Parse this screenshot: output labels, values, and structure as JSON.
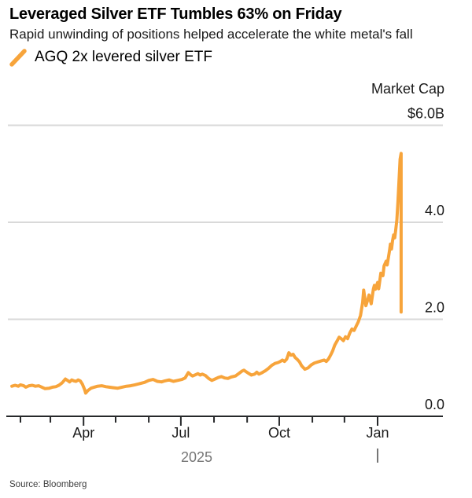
{
  "header": {
    "title": "Leveraged Silver ETF Tumbles 63% on Friday",
    "subtitle": "Rapid unwinding of positions helped accelerate the white metal's fall"
  },
  "legend": {
    "series_label": "AGQ 2x levered silver ETF"
  },
  "source": {
    "label": "Source: Bloomberg"
  },
  "colors": {
    "line": "#F7A43B",
    "grid": "#D9D9D9",
    "axis": "#26282A",
    "text": "#1A1A1A",
    "muted": "#767676"
  },
  "chart_data": {
    "type": "line",
    "title": "Leveraged Silver ETF Tumbles 63% on Friday",
    "subtitle": "Rapid unwinding of positions helped accelerate the white metal's fall",
    "unit": "$B market cap",
    "grid": "horizontal-only",
    "legend_position": "top-left",
    "y_axis": {
      "title": "Market Cap",
      "range": [
        0.0,
        6.0
      ],
      "ticks": [
        {
          "value": 6.0,
          "label": "$6.0B"
        },
        {
          "value": 4.0,
          "label": "4.0"
        },
        {
          "value": 2.0,
          "label": "2.0"
        },
        {
          "value": 0.0,
          "label": "0.0"
        }
      ]
    },
    "x_axis": {
      "range": [
        "2025-01-18",
        "2026-02-14"
      ],
      "year_label": "2025",
      "year_divider_date": "2026-01-01",
      "ticks": [
        {
          "date": "2025-02-01",
          "label": "",
          "major": false
        },
        {
          "date": "2025-03-01",
          "label": "",
          "major": false
        },
        {
          "date": "2025-04-01",
          "label": "Apr",
          "major": true
        },
        {
          "date": "2025-05-01",
          "label": "",
          "major": false
        },
        {
          "date": "2025-06-01",
          "label": "",
          "major": false
        },
        {
          "date": "2025-07-01",
          "label": "Jul",
          "major": true
        },
        {
          "date": "2025-08-01",
          "label": "",
          "major": false
        },
        {
          "date": "2025-09-01",
          "label": "",
          "major": false
        },
        {
          "date": "2025-10-01",
          "label": "Oct",
          "major": true
        },
        {
          "date": "2025-11-01",
          "label": "",
          "major": false
        },
        {
          "date": "2025-12-01",
          "label": "",
          "major": false
        },
        {
          "date": "2026-01-01",
          "label": "Jan",
          "major": true
        }
      ]
    },
    "series": [
      {
        "name": "AGQ 2x levered silver ETF",
        "color": "#F7A43B",
        "points": [
          [
            "2025-01-24",
            0.62
          ],
          [
            "2025-01-27",
            0.64
          ],
          [
            "2025-01-30",
            0.62
          ],
          [
            "2025-02-01",
            0.65
          ],
          [
            "2025-02-04",
            0.63
          ],
          [
            "2025-02-06",
            0.6
          ],
          [
            "2025-02-09",
            0.63
          ],
          [
            "2025-02-12",
            0.64
          ],
          [
            "2025-02-15",
            0.62
          ],
          [
            "2025-02-18",
            0.63
          ],
          [
            "2025-02-21",
            0.6
          ],
          [
            "2025-02-24",
            0.57
          ],
          [
            "2025-02-28",
            0.58
          ],
          [
            "2025-03-03",
            0.6
          ],
          [
            "2025-03-06",
            0.61
          ],
          [
            "2025-03-09",
            0.64
          ],
          [
            "2025-03-12",
            0.69
          ],
          [
            "2025-03-15",
            0.77
          ],
          [
            "2025-03-17",
            0.74
          ],
          [
            "2025-03-19",
            0.71
          ],
          [
            "2025-03-21",
            0.75
          ],
          [
            "2025-03-23",
            0.73
          ],
          [
            "2025-03-25",
            0.72
          ],
          [
            "2025-03-27",
            0.75
          ],
          [
            "2025-03-29",
            0.73
          ],
          [
            "2025-03-31",
            0.66
          ],
          [
            "2025-04-02",
            0.55
          ],
          [
            "2025-04-03",
            0.48
          ],
          [
            "2025-04-05",
            0.53
          ],
          [
            "2025-04-08",
            0.58
          ],
          [
            "2025-04-11",
            0.6
          ],
          [
            "2025-04-14",
            0.62
          ],
          [
            "2025-04-18",
            0.63
          ],
          [
            "2025-04-22",
            0.61
          ],
          [
            "2025-04-25",
            0.6
          ],
          [
            "2025-04-29",
            0.59
          ],
          [
            "2025-05-03",
            0.58
          ],
          [
            "2025-05-07",
            0.6
          ],
          [
            "2025-05-11",
            0.62
          ],
          [
            "2025-05-15",
            0.63
          ],
          [
            "2025-05-19",
            0.65
          ],
          [
            "2025-05-23",
            0.67
          ],
          [
            "2025-05-28",
            0.7
          ],
          [
            "2025-06-01",
            0.74
          ],
          [
            "2025-06-05",
            0.76
          ],
          [
            "2025-06-09",
            0.72
          ],
          [
            "2025-06-13",
            0.71
          ],
          [
            "2025-06-16",
            0.73
          ],
          [
            "2025-06-20",
            0.75
          ],
          [
            "2025-06-24",
            0.72
          ],
          [
            "2025-06-28",
            0.74
          ],
          [
            "2025-07-02",
            0.76
          ],
          [
            "2025-07-05",
            0.79
          ],
          [
            "2025-07-08",
            0.9
          ],
          [
            "2025-07-10",
            0.86
          ],
          [
            "2025-07-12",
            0.83
          ],
          [
            "2025-07-15",
            0.86
          ],
          [
            "2025-07-17",
            0.88
          ],
          [
            "2025-07-19",
            0.85
          ],
          [
            "2025-07-21",
            0.87
          ],
          [
            "2025-07-24",
            0.84
          ],
          [
            "2025-07-27",
            0.78
          ],
          [
            "2025-07-30",
            0.74
          ],
          [
            "2025-08-02",
            0.77
          ],
          [
            "2025-08-05",
            0.8
          ],
          [
            "2025-08-08",
            0.82
          ],
          [
            "2025-08-11",
            0.79
          ],
          [
            "2025-08-14",
            0.78
          ],
          [
            "2025-08-17",
            0.81
          ],
          [
            "2025-08-21",
            0.83
          ],
          [
            "2025-08-24",
            0.88
          ],
          [
            "2025-08-27",
            0.93
          ],
          [
            "2025-08-29",
            0.95
          ],
          [
            "2025-08-31",
            0.92
          ],
          [
            "2025-09-02",
            0.89
          ],
          [
            "2025-09-05",
            0.85
          ],
          [
            "2025-09-08",
            0.87
          ],
          [
            "2025-09-10",
            0.91
          ],
          [
            "2025-09-12",
            0.87
          ],
          [
            "2025-09-15",
            0.9
          ],
          [
            "2025-09-18",
            0.94
          ],
          [
            "2025-09-21",
            0.99
          ],
          [
            "2025-09-24",
            1.05
          ],
          [
            "2025-09-27",
            1.09
          ],
          [
            "2025-09-30",
            1.11
          ],
          [
            "2025-10-02",
            1.13
          ],
          [
            "2025-10-04",
            1.16
          ],
          [
            "2025-10-06",
            1.13
          ],
          [
            "2025-10-08",
            1.18
          ],
          [
            "2025-10-10",
            1.31
          ],
          [
            "2025-10-12",
            1.26
          ],
          [
            "2025-10-14",
            1.28
          ],
          [
            "2025-10-16",
            1.21
          ],
          [
            "2025-10-18",
            1.17
          ],
          [
            "2025-10-20",
            1.12
          ],
          [
            "2025-10-22",
            1.04
          ],
          [
            "2025-10-25",
            0.97
          ],
          [
            "2025-10-28",
            1.0
          ],
          [
            "2025-10-31",
            1.06
          ],
          [
            "2025-11-03",
            1.1
          ],
          [
            "2025-11-06",
            1.12
          ],
          [
            "2025-11-09",
            1.14
          ],
          [
            "2025-11-12",
            1.16
          ],
          [
            "2025-11-14",
            1.13
          ],
          [
            "2025-11-16",
            1.18
          ],
          [
            "2025-11-18",
            1.26
          ],
          [
            "2025-11-20",
            1.35
          ],
          [
            "2025-11-22",
            1.47
          ],
          [
            "2025-11-24",
            1.55
          ],
          [
            "2025-11-26",
            1.63
          ],
          [
            "2025-11-28",
            1.6
          ],
          [
            "2025-11-30",
            1.56
          ],
          [
            "2025-12-02",
            1.64
          ],
          [
            "2025-12-04",
            1.6
          ],
          [
            "2025-12-06",
            1.72
          ],
          [
            "2025-12-08",
            1.8
          ],
          [
            "2025-12-10",
            1.77
          ],
          [
            "2025-12-12",
            1.86
          ],
          [
            "2025-12-14",
            1.95
          ],
          [
            "2025-12-16",
            2.08
          ],
          [
            "2025-12-18",
            2.35
          ],
          [
            "2025-12-19",
            2.6
          ],
          [
            "2025-12-21",
            2.28
          ],
          [
            "2025-12-23",
            2.42
          ],
          [
            "2025-12-24",
            2.5
          ],
          [
            "2025-12-26",
            2.32
          ],
          [
            "2025-12-28",
            2.62
          ],
          [
            "2025-12-29",
            2.7
          ],
          [
            "2025-12-30",
            2.62
          ],
          [
            "2026-01-01",
            2.76
          ],
          [
            "2026-01-02",
            2.63
          ],
          [
            "2026-01-04",
            2.95
          ],
          [
            "2026-01-06",
            2.9
          ],
          [
            "2026-01-07",
            3.1
          ],
          [
            "2026-01-09",
            3.2
          ],
          [
            "2026-01-10",
            3.12
          ],
          [
            "2026-01-12",
            3.4
          ],
          [
            "2026-01-13",
            3.55
          ],
          [
            "2026-01-14",
            3.45
          ],
          [
            "2026-01-15",
            3.62
          ],
          [
            "2026-01-16",
            3.74
          ],
          [
            "2026-01-17",
            3.68
          ],
          [
            "2026-01-18",
            3.85
          ],
          [
            "2026-01-19",
            4.05
          ],
          [
            "2026-01-20",
            4.4
          ],
          [
            "2026-01-21",
            4.85
          ],
          [
            "2026-01-22",
            5.3
          ],
          [
            "2026-01-23",
            5.42
          ],
          [
            "2026-01-23",
            2.15
          ]
        ]
      }
    ]
  }
}
